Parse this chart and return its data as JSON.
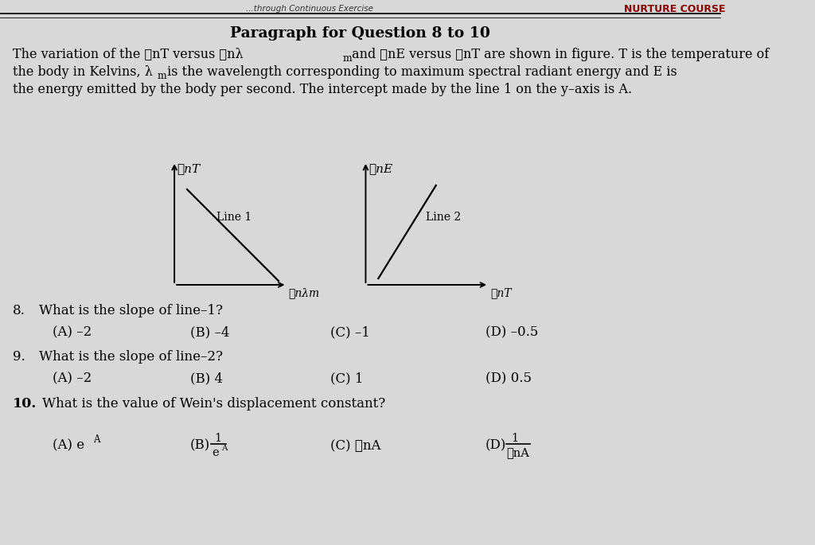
{
  "background_color": "#d8d8d8",
  "header_text": "Paragraph for Question 8 to 10",
  "top_center_text": "...through Continuous Exercise",
  "top_right_text": "NURTURE COURSE",
  "para_line1": "The variation of the ℓnT versus ℓnλ",
  "para_line1b": "m",
  "para_line1c": " and ℓnE versus ℓnT are shown in figure. T is the temperature of",
  "para_line2": "the body in Kelvins, λ",
  "para_line2b": "m",
  "para_line2c": " is the wavelength corresponding to maximum spectral radiant energy and E is",
  "para_line3": "the energy emitted by the body per second. The intercept made by the line 1 on the y–axis is A.",
  "graph1_ylabel": "ℓnT",
  "graph1_xlabel": "ℓnλm",
  "graph1_line_label": "Line 1",
  "graph2_ylabel": "ℓnE",
  "graph2_xlabel": "ℓnT",
  "graph2_line_label": "Line 2",
  "q8_num": "8.",
  "q8_text": "What is the slope of line–1?",
  "q8_A": "(A) –2",
  "q8_B": "(B) –4",
  "q8_C": "(C) –1",
  "q8_D": "(D) –0.5",
  "q9_num": "9.",
  "q9_text": "What is the slope of line–2?",
  "q9_A": "(A) –2",
  "q9_B": "(B) 4",
  "q9_C": "(C) 1",
  "q9_D": "(D) 0.5",
  "q10_num": "10.",
  "q10_text": "What is the value of Wein's displacement constant?",
  "q10_A_pre": "(A) e",
  "q10_A_sup": "A",
  "q10_B_pre": "(B) ",
  "q10_C": "(C) ℓnA",
  "q10_D_pre": "(D) "
}
